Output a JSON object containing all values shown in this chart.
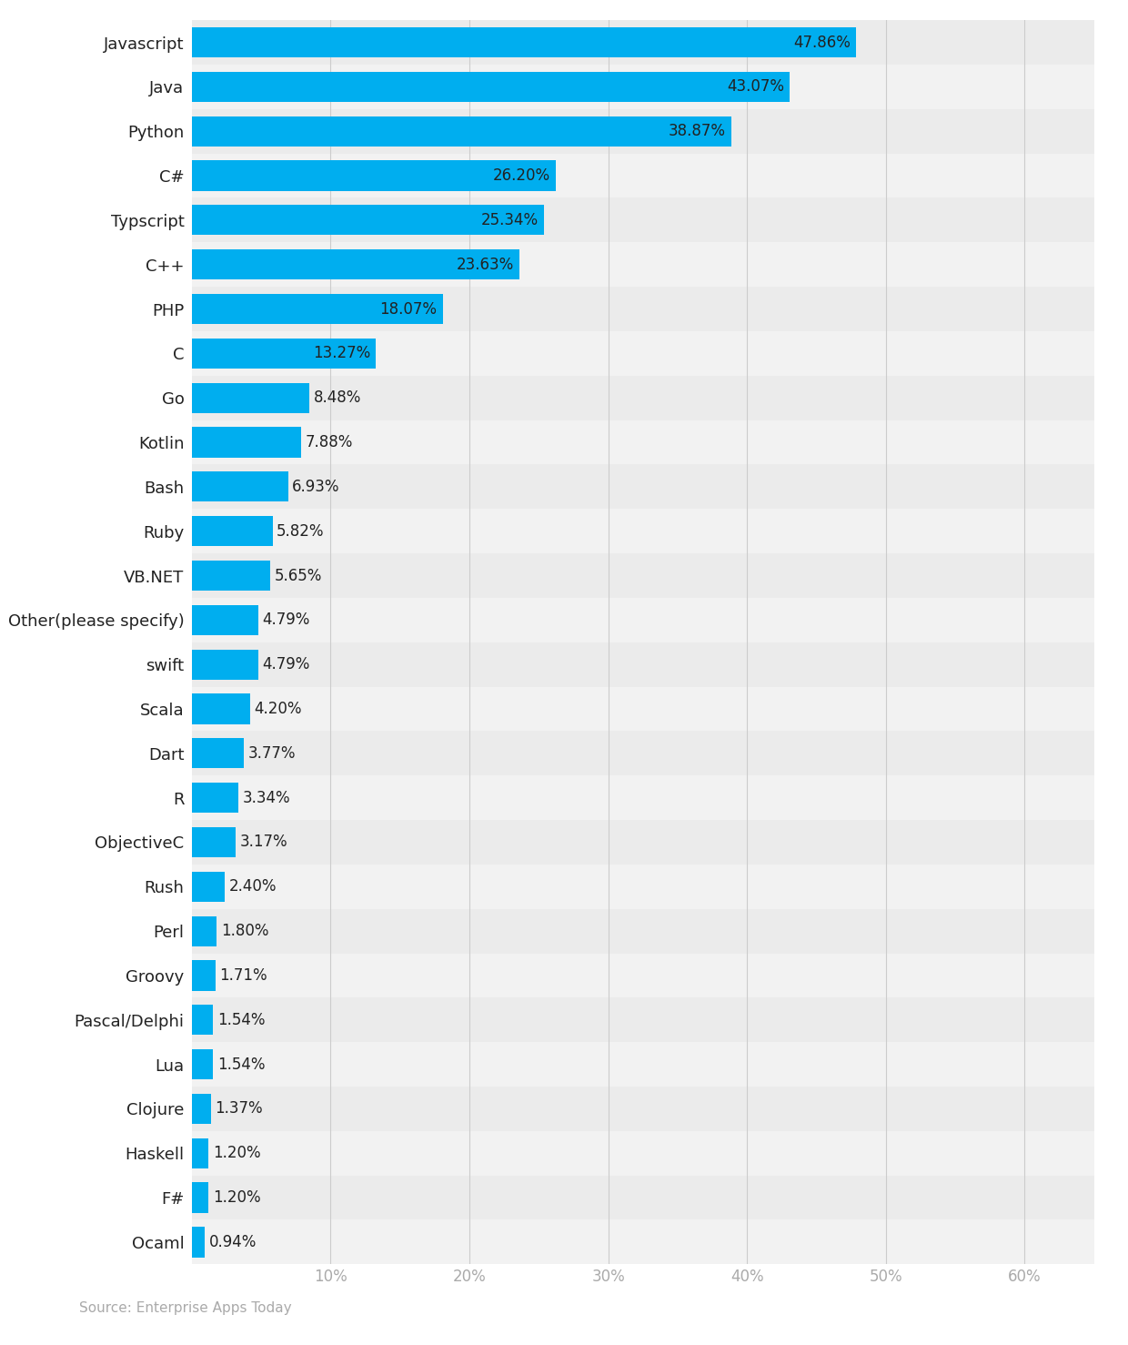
{
  "languages": [
    "Javascript",
    "Java",
    "Python",
    "C#",
    "Typscript",
    "C++",
    "PHP",
    "C",
    "Go",
    "Kotlin",
    "Bash",
    "Ruby",
    "VB.NET",
    "Other(please specify)",
    "swift",
    "Scala",
    "Dart",
    "R",
    "ObjectiveC",
    "Rush",
    "Perl",
    "Groovy",
    "Pascal/Delphi",
    "Lua",
    "Clojure",
    "Haskell",
    "F#",
    "Ocaml"
  ],
  "values": [
    47.86,
    43.07,
    38.87,
    26.2,
    25.34,
    23.63,
    18.07,
    13.27,
    8.48,
    7.88,
    6.93,
    5.82,
    5.65,
    4.79,
    4.79,
    4.2,
    3.77,
    3.34,
    3.17,
    2.4,
    1.8,
    1.71,
    1.54,
    1.54,
    1.37,
    1.2,
    1.2,
    0.94
  ],
  "bar_color": "#00AEEF",
  "fig_bg_color": "#FFFFFF",
  "plot_bg_color": "#FFFFFF",
  "label_color": "#222222",
  "value_color": "#222222",
  "source_text": "Source: Enterprise Apps Today",
  "xlabel_ticks": [
    10,
    20,
    30,
    40,
    50,
    60
  ],
  "xlabel_labels": [
    "10%",
    "20%",
    "30%",
    "40%",
    "50%",
    "60%"
  ],
  "xlim": [
    0,
    65
  ],
  "label_fontsize": 13,
  "value_fontsize": 12,
  "tick_fontsize": 12,
  "source_fontsize": 11,
  "row_colors": [
    "#EBEBEB",
    "#F2F2F2"
  ],
  "grid_color": "#CCCCCC",
  "tick_color": "#AAAAAA"
}
